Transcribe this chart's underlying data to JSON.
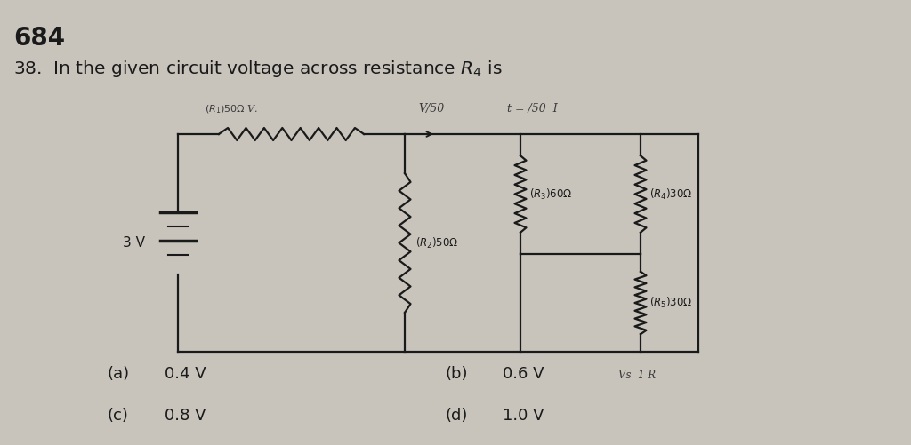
{
  "background_color": "#c8c4bc",
  "page_number": "684",
  "text_color": "#1a1a1a",
  "line_color": "#1a1a1a",
  "options": [
    {
      "label": "(a)",
      "value": "0.4 V"
    },
    {
      "label": "(b)",
      "value": "0.6 V"
    },
    {
      "label": "(c)",
      "value": "0.8 V"
    },
    {
      "label": "(d)",
      "value": "1.0 V"
    }
  ],
  "circuit": {
    "battery_voltage": "3 V",
    "R1_label": "$(R_1)50\\Omega$",
    "R2_label": "$(R_2)50\\Omega$",
    "R3_label": "$(R_3)60\\Omega$",
    "R4_label": "$(R_4)30\\Omega$",
    "R5_label": "$(R_5)30\\Omega$"
  },
  "handwritten1": "$(R_1)50\\Omega$ V.",
  "handwritten2": "V/50",
  "handwritten3": "t = /50  I",
  "answer_hint": "Vs  1 R",
  "paper_color": "#e8e4dc"
}
